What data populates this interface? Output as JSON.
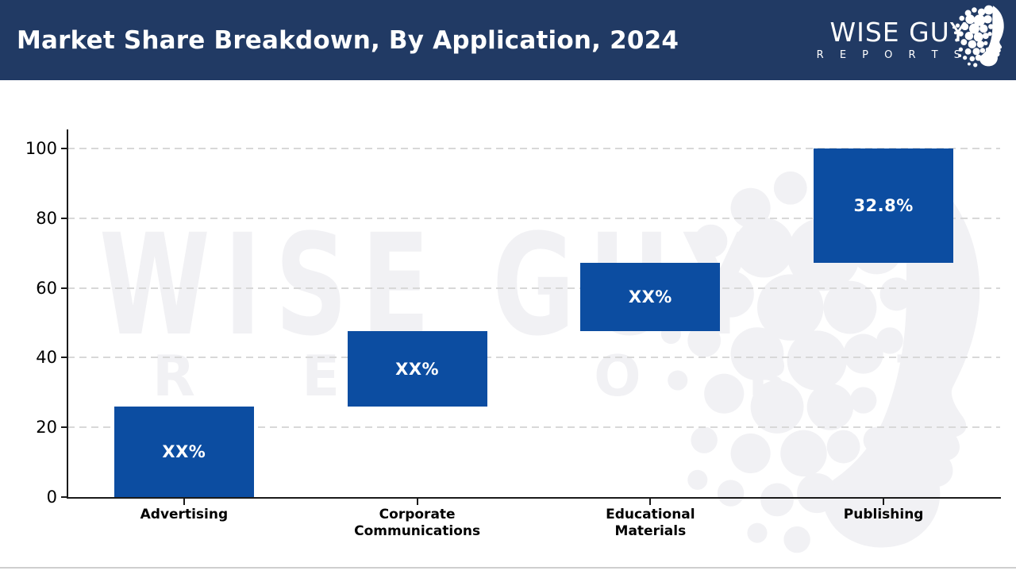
{
  "header": {
    "title": "Market Share Breakdown, By Application, 2024",
    "logo": {
      "brand": "WISE GUY",
      "sub": "R E P O R T S"
    },
    "bg_color": "#213a64"
  },
  "watermark": {
    "brand": "WISE GUY",
    "sub": "R E P O R T S",
    "color": "#f1f1f4"
  },
  "chart_data": {
    "type": "bar",
    "subtype": "waterfall",
    "title": "Market Share Breakdown, By Application, 2024",
    "categories": [
      "Advertising",
      "Corporate\nCommunications",
      "Educational\nMaterials",
      "Publishing"
    ],
    "series": [
      {
        "name": "Market share (%)",
        "segment_start": [
          0,
          25.9,
          47.6,
          67.2
        ],
        "segment_size": [
          25.9,
          21.7,
          19.6,
          32.8
        ],
        "cumulative_end": [
          25.9,
          47.6,
          67.2,
          100
        ]
      }
    ],
    "bar_labels": [
      "XX%",
      "XX%",
      "XX%",
      "32.8%"
    ],
    "bar_color": "#0c4da1",
    "yticks": [
      0,
      20,
      40,
      60,
      80,
      100
    ],
    "ylim": [
      0,
      104
    ],
    "xlabel": "",
    "ylabel": "",
    "grid": "horizontal-dashed",
    "legend": "none"
  },
  "colors": {
    "header_bg": "#213a64",
    "bar": "#0c4da1",
    "grid": "#d8d8d8",
    "axis": "#1a1a1a",
    "watermark": "#f1f1f4"
  }
}
